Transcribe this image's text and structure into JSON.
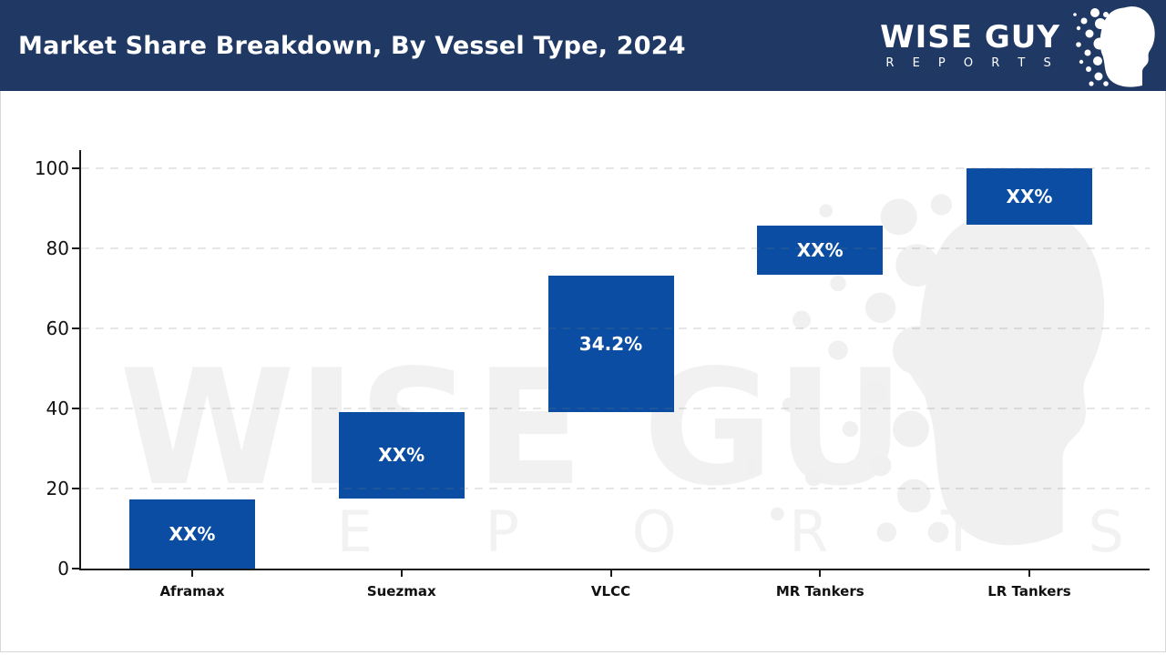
{
  "header": {
    "title": "Market Share Breakdown, By Vessel Type, 2024",
    "logo": {
      "line1": "WISE GUY",
      "line2": "R E P O R T S"
    }
  },
  "watermark": {
    "line1": "WISE GUY",
    "line2": "R E P O R T S"
  },
  "colors": {
    "header_bg": "#1F3864",
    "bar": "#0B4DA2",
    "watermark_gray": "#F1F1F1",
    "axis": "#1a1a1a",
    "gridline": "#E3E3E3"
  },
  "chart_data": {
    "type": "bar",
    "subtype": "waterfall",
    "title": "Market Share Breakdown, By Vessel Type, 2024",
    "xlabel": "",
    "ylabel": "",
    "ylim": [
      0,
      100
    ],
    "yticks": [
      0,
      20,
      40,
      60,
      80,
      100
    ],
    "grid": "horizontal dashed, drawn over bars",
    "legend": "none",
    "categories": [
      "Aframax",
      "Suezmax",
      "VLCC",
      "MR Tankers",
      "LR Tankers"
    ],
    "segments": [
      {
        "category": "Aframax",
        "start": 0,
        "end": 17.3,
        "value": 17.3,
        "label": "XX%"
      },
      {
        "category": "Suezmax",
        "start": 17.6,
        "end": 39.0,
        "value": 21.4,
        "label": "XX%"
      },
      {
        "category": "VLCC",
        "start": 39.0,
        "end": 73.2,
        "value": 34.2,
        "label": "34.2%"
      },
      {
        "category": "MR Tankers",
        "start": 73.4,
        "end": 85.7,
        "value": 12.3,
        "label": "XX%"
      },
      {
        "category": "LR Tankers",
        "start": 85.9,
        "end": 100.0,
        "value": 14.1,
        "label": "XX%"
      }
    ]
  }
}
